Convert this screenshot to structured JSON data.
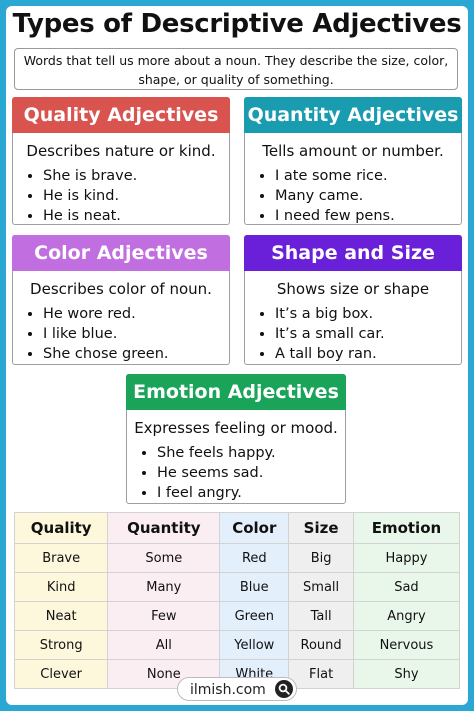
{
  "title": "Types of Descriptive Adjectives",
  "intro": {
    "line1": "Words that tell us more about a noun. They describe the size, color,",
    "line2": "shape, or quality of something."
  },
  "cards": [
    {
      "title": "Quality Adjectives",
      "desc": "Describes nature or kind.",
      "items": [
        "She is brave.",
        "He is kind.",
        "He is neat."
      ],
      "color": "#d9534f"
    },
    {
      "title": "Quantity Adjectives",
      "desc": "Tells amount or number.",
      "items": [
        "I ate some rice.",
        "Many came.",
        "I need few pens."
      ],
      "color": "#1a9cb0"
    },
    {
      "title": "Color Adjectives",
      "desc": "Describes color of noun.",
      "items": [
        "He wore red.",
        "I like blue.",
        "She chose green."
      ],
      "color": "#c06ee0"
    },
    {
      "title": "Shape and Size",
      "desc": "Shows size or shape",
      "items": [
        "It’s a big box.",
        "It’s a small car.",
        "A tall boy ran."
      ],
      "color": "#6a1fd8"
    },
    {
      "title": "Emotion Adjectives",
      "desc": "Expresses feeling or mood.",
      "items": [
        "She feels happy.",
        "He seems sad.",
        "I feel angry."
      ],
      "color": "#1aa45a"
    }
  ],
  "table": {
    "headers": [
      "Quality",
      "Quantity",
      "Color",
      "Size",
      "Emotion"
    ],
    "col_colors": [
      "#fdf7dc",
      "#fbeef2",
      "#e4effc",
      "#efefef",
      "#e9f7ea"
    ],
    "rows": [
      [
        "Brave",
        "Some",
        "Red",
        "Big",
        "Happy"
      ],
      [
        "Kind",
        "Many",
        "Blue",
        "Small",
        "Sad"
      ],
      [
        "Neat",
        "Few",
        "Green",
        "Tall",
        "Angry"
      ],
      [
        "Strong",
        "All",
        "Yellow",
        "Round",
        "Nervous"
      ],
      [
        "Clever",
        "None",
        "White",
        "Flat",
        "Shy"
      ]
    ]
  },
  "footer": {
    "brand": "ilmish.com",
    "icon": "magnifier-icon"
  }
}
